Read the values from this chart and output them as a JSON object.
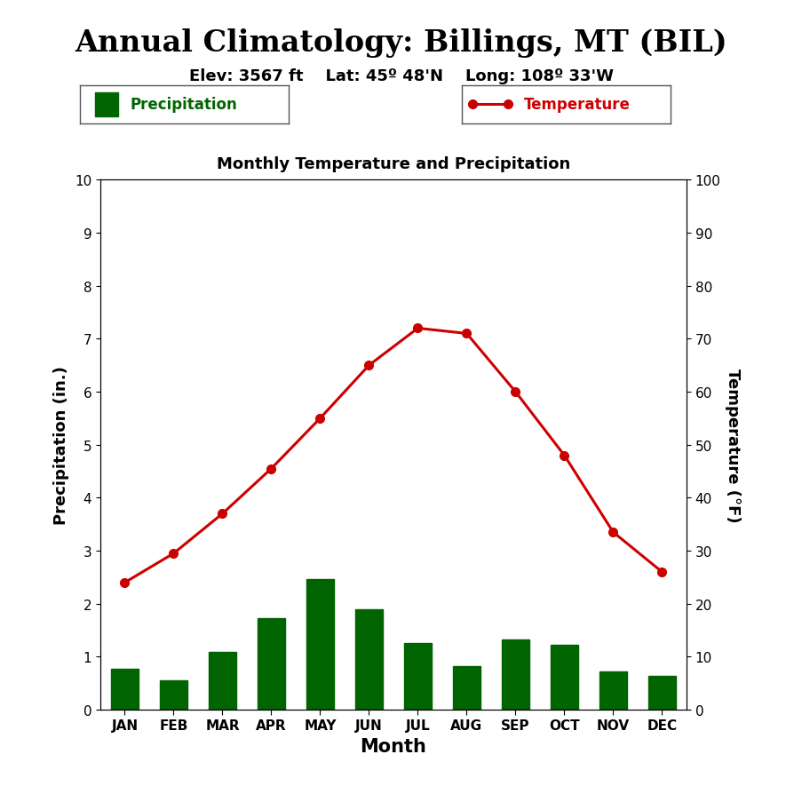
{
  "title": "Annual Climatology: Billings, MT (BIL)",
  "subtitle": "Elev: 3567 ft    Lat: 45º 48'N    Long: 108º 33'W",
  "chart_title": "Monthly Temperature and Precipitation",
  "months": [
    "JAN",
    "FEB",
    "MAR",
    "APR",
    "MAY",
    "JUN",
    "JUL",
    "AUG",
    "SEP",
    "OCT",
    "NOV",
    "DEC"
  ],
  "precipitation": [
    0.78,
    0.55,
    1.09,
    1.73,
    2.47,
    1.9,
    1.26,
    0.83,
    1.32,
    1.22,
    0.72,
    0.63
  ],
  "temperature": [
    24.0,
    29.5,
    37.0,
    45.5,
    55.0,
    65.0,
    72.0,
    71.0,
    60.0,
    48.0,
    33.5,
    26.0
  ],
  "precip_color": "#006400",
  "temp_color": "#cc0000",
  "xlabel": "Month",
  "ylabel_left": "Precipitation (in.)",
  "ylabel_right": "Temperature (°F)",
  "ylim_left": [
    0,
    10
  ],
  "ylim_right": [
    0,
    100
  ],
  "yticks_left": [
    0,
    1,
    2,
    3,
    4,
    5,
    6,
    7,
    8,
    9,
    10
  ],
  "yticks_right": [
    0,
    10,
    20,
    30,
    40,
    50,
    60,
    70,
    80,
    90,
    100
  ],
  "legend_precip_label": "Precipitation",
  "legend_temp_label": "Temperature",
  "background_color": "#ffffff",
  "title_fontsize": 24,
  "subtitle_fontsize": 13,
  "chart_title_fontsize": 13,
  "axis_label_fontsize": 13,
  "tick_fontsize": 11,
  "xlabel_fontsize": 15,
  "legend_fontsize": 12
}
